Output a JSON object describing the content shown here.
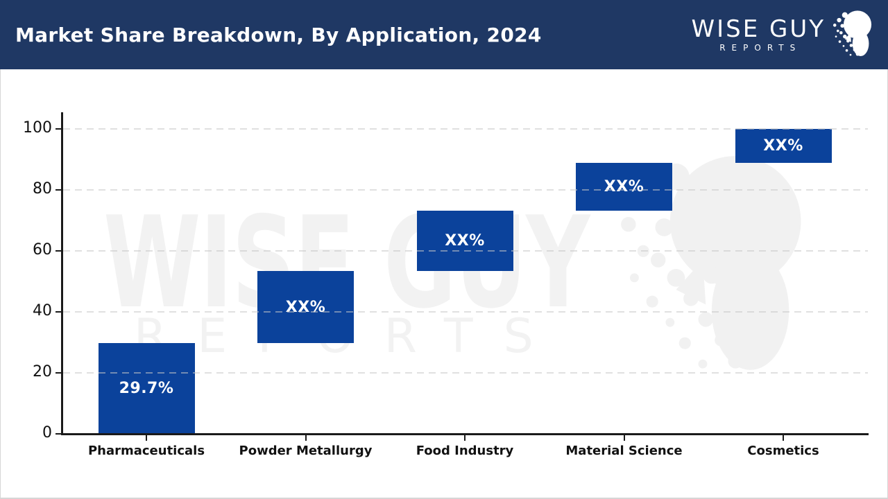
{
  "header": {
    "title": "Market Share Breakdown, By Application, 2024",
    "logo": {
      "line1": "WISE GUY",
      "line2": "REPORTS",
      "icon": "dotted-face-profile-icon"
    }
  },
  "watermark": {
    "line1": "WISE GUY",
    "line2": "REPORTS",
    "icon": "dotted-face-profile-icon"
  },
  "chart_data": {
    "type": "bar",
    "subtype": "waterfall-stacked-share",
    "title": "Market Share Breakdown, By Application, 2024",
    "xlabel": "",
    "ylabel": "",
    "categories": [
      "Pharmaceuticals",
      "Powder Metallurgy",
      "Food Industry",
      "Material Science",
      "Cosmetics"
    ],
    "series": [
      {
        "name": "Market Share (%)",
        "segments": [
          {
            "category": "Pharmaceuticals",
            "start": 0,
            "end": 29.7,
            "size": 29.7,
            "label": "29.7%"
          },
          {
            "category": "Powder Metallurgy",
            "start": 29.7,
            "end": 53.4,
            "size": 23.7,
            "label": "XX%"
          },
          {
            "category": "Food Industry",
            "start": 53.4,
            "end": 73.2,
            "size": 19.8,
            "label": "XX%"
          },
          {
            "category": "Material Science",
            "start": 73.2,
            "end": 88.9,
            "size": 15.7,
            "label": "XX%"
          },
          {
            "category": "Cosmetics",
            "start": 88.9,
            "end": 100,
            "size": 11.1,
            "label": "XX%"
          }
        ]
      }
    ],
    "ylim": [
      0,
      105
    ],
    "yticks": [
      0,
      20,
      40,
      60,
      80,
      100
    ],
    "grid": "horizontal-dashed",
    "legend": "none",
    "bar_color": "#0b429b",
    "label_color": "#ffffff"
  },
  "colors": {
    "header_bg": "#1f3864",
    "bar": "#0b429b",
    "grid": "#dedede",
    "axis": "#1a1a1a",
    "watermark": "#f2f2f2",
    "text": "#111111"
  }
}
